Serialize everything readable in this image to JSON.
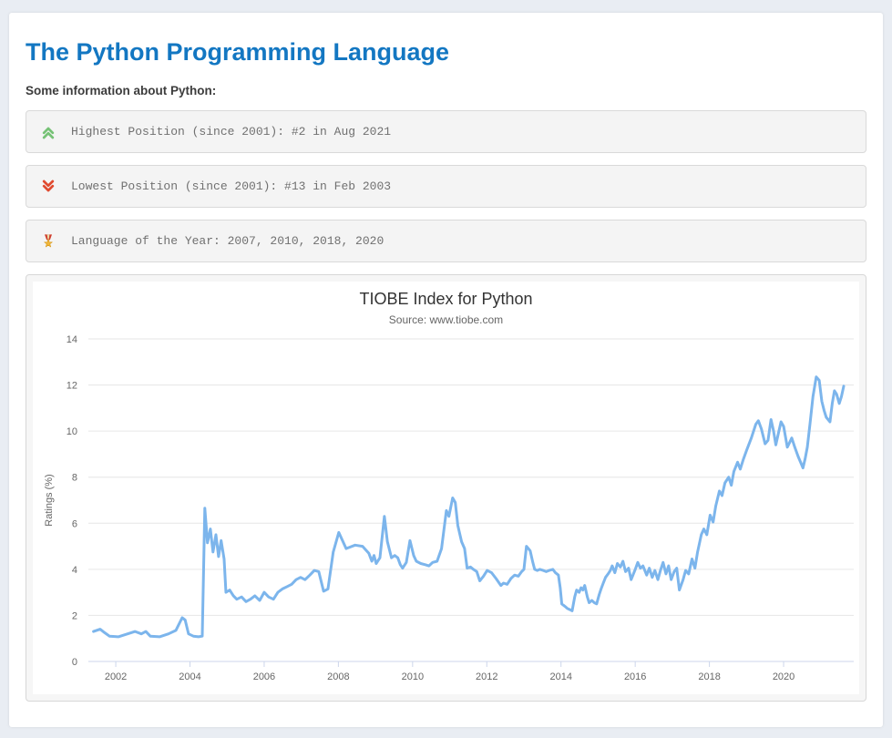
{
  "header": {
    "title": "The Python Programming Language",
    "intro": "Some information about Python:"
  },
  "info_boxes": [
    {
      "icon": "chevrons-up-icon",
      "icon_color": "#76c276",
      "text": "Highest Position (since 2001): #2 in Aug 2021"
    },
    {
      "icon": "chevrons-down-icon",
      "icon_color": "#e04a2f",
      "text": "Lowest Position (since 2001): #13 in Feb 2003"
    },
    {
      "icon": "medal-icon",
      "icon_color": "#f0b63a",
      "text": "Language of the Year: 2007, 2010, 2018, 2020"
    }
  ],
  "chart_data": {
    "type": "line",
    "title": "TIOBE Index for Python",
    "subtitle": "Source: www.tiobe.com",
    "xlabel": "",
    "ylabel": "Ratings (%)",
    "x_ticks": [
      2002,
      2004,
      2006,
      2008,
      2010,
      2012,
      2014,
      2016,
      2018,
      2020
    ],
    "y_ticks": [
      0,
      2,
      4,
      6,
      8,
      10,
      12,
      14
    ],
    "x_range": [
      2001.26,
      2021.89
    ],
    "y_range": [
      0,
      14
    ],
    "grid": true,
    "legend_position": "none",
    "line_color": "#7cb5ec",
    "grid_color": "#e6e6e6",
    "axis_color": "#ccd6eb",
    "tick_label_color": "#666666",
    "series": [
      {
        "name": "Python",
        "points": [
          [
            2001.4,
            1.3
          ],
          [
            2001.58,
            1.4
          ],
          [
            2001.7,
            1.25
          ],
          [
            2001.83,
            1.1
          ],
          [
            2002.07,
            1.07
          ],
          [
            2002.32,
            1.2
          ],
          [
            2002.52,
            1.3
          ],
          [
            2002.69,
            1.2
          ],
          [
            2002.81,
            1.3
          ],
          [
            2002.93,
            1.1
          ],
          [
            2003.18,
            1.07
          ],
          [
            2003.42,
            1.2
          ],
          [
            2003.62,
            1.35
          ],
          [
            2003.79,
            1.9
          ],
          [
            2003.87,
            1.8
          ],
          [
            2003.96,
            1.2
          ],
          [
            2004.09,
            1.1
          ],
          [
            2004.23,
            1.07
          ],
          [
            2004.33,
            1.1
          ],
          [
            2004.4,
            6.65
          ],
          [
            2004.47,
            5.15
          ],
          [
            2004.55,
            5.75
          ],
          [
            2004.62,
            4.75
          ],
          [
            2004.7,
            5.5
          ],
          [
            2004.77,
            4.55
          ],
          [
            2004.84,
            5.25
          ],
          [
            2004.92,
            4.45
          ],
          [
            2004.97,
            3.0
          ],
          [
            2005.07,
            3.1
          ],
          [
            2005.17,
            2.85
          ],
          [
            2005.26,
            2.7
          ],
          [
            2005.39,
            2.8
          ],
          [
            2005.51,
            2.6
          ],
          [
            2005.63,
            2.7
          ],
          [
            2005.75,
            2.85
          ],
          [
            2005.88,
            2.65
          ],
          [
            2006.0,
            3.0
          ],
          [
            2006.12,
            2.8
          ],
          [
            2006.25,
            2.7
          ],
          [
            2006.37,
            3.0
          ],
          [
            2006.49,
            3.15
          ],
          [
            2006.62,
            3.25
          ],
          [
            2006.74,
            3.35
          ],
          [
            2006.86,
            3.55
          ],
          [
            2006.98,
            3.65
          ],
          [
            2007.1,
            3.55
          ],
          [
            2007.23,
            3.75
          ],
          [
            2007.35,
            3.95
          ],
          [
            2007.47,
            3.9
          ],
          [
            2007.6,
            3.05
          ],
          [
            2007.72,
            3.15
          ],
          [
            2007.86,
            4.75
          ],
          [
            2008.01,
            5.6
          ],
          [
            2008.21,
            4.9
          ],
          [
            2008.45,
            5.05
          ],
          [
            2008.65,
            5.0
          ],
          [
            2008.82,
            4.7
          ],
          [
            2008.9,
            4.35
          ],
          [
            2008.96,
            4.6
          ],
          [
            2009.02,
            4.25
          ],
          [
            2009.12,
            4.5
          ],
          [
            2009.24,
            6.3
          ],
          [
            2009.32,
            5.2
          ],
          [
            2009.43,
            4.5
          ],
          [
            2009.52,
            4.6
          ],
          [
            2009.6,
            4.5
          ],
          [
            2009.67,
            4.2
          ],
          [
            2009.73,
            4.05
          ],
          [
            2009.83,
            4.3
          ],
          [
            2009.93,
            5.25
          ],
          [
            2010.03,
            4.6
          ],
          [
            2010.1,
            4.35
          ],
          [
            2010.22,
            4.25
          ],
          [
            2010.34,
            4.2
          ],
          [
            2010.44,
            4.15
          ],
          [
            2010.54,
            4.3
          ],
          [
            2010.66,
            4.35
          ],
          [
            2010.78,
            4.9
          ],
          [
            2010.91,
            6.55
          ],
          [
            2010.98,
            6.3
          ],
          [
            2011.08,
            7.1
          ],
          [
            2011.15,
            6.9
          ],
          [
            2011.22,
            5.9
          ],
          [
            2011.32,
            5.2
          ],
          [
            2011.4,
            4.9
          ],
          [
            2011.47,
            4.05
          ],
          [
            2011.56,
            4.1
          ],
          [
            2011.64,
            4.0
          ],
          [
            2011.73,
            3.9
          ],
          [
            2011.81,
            3.5
          ],
          [
            2011.91,
            3.7
          ],
          [
            2012.01,
            3.95
          ],
          [
            2012.13,
            3.85
          ],
          [
            2012.25,
            3.6
          ],
          [
            2012.38,
            3.3
          ],
          [
            2012.45,
            3.4
          ],
          [
            2012.55,
            3.35
          ],
          [
            2012.65,
            3.6
          ],
          [
            2012.75,
            3.75
          ],
          [
            2012.85,
            3.7
          ],
          [
            2012.94,
            3.9
          ],
          [
            2013.0,
            4.0
          ],
          [
            2013.07,
            5.0
          ],
          [
            2013.12,
            4.9
          ],
          [
            2013.17,
            4.8
          ],
          [
            2013.24,
            4.3
          ],
          [
            2013.29,
            4.0
          ],
          [
            2013.36,
            3.95
          ],
          [
            2013.43,
            4.0
          ],
          [
            2013.52,
            3.95
          ],
          [
            2013.6,
            3.9
          ],
          [
            2013.68,
            3.95
          ],
          [
            2013.78,
            4.0
          ],
          [
            2013.85,
            3.85
          ],
          [
            2013.93,
            3.75
          ],
          [
            2013.98,
            3.2
          ],
          [
            2014.02,
            2.5
          ],
          [
            2014.1,
            2.4
          ],
          [
            2014.17,
            2.3
          ],
          [
            2014.24,
            2.25
          ],
          [
            2014.3,
            2.2
          ],
          [
            2014.37,
            2.8
          ],
          [
            2014.42,
            3.1
          ],
          [
            2014.49,
            3.0
          ],
          [
            2014.54,
            3.2
          ],
          [
            2014.59,
            3.1
          ],
          [
            2014.64,
            3.3
          ],
          [
            2014.71,
            2.8
          ],
          [
            2014.76,
            2.55
          ],
          [
            2014.83,
            2.65
          ],
          [
            2014.9,
            2.55
          ],
          [
            2014.96,
            2.5
          ],
          [
            2015.03,
            2.9
          ],
          [
            2015.08,
            3.15
          ],
          [
            2015.14,
            3.4
          ],
          [
            2015.2,
            3.65
          ],
          [
            2015.27,
            3.8
          ],
          [
            2015.33,
            3.95
          ],
          [
            2015.38,
            4.15
          ],
          [
            2015.45,
            3.85
          ],
          [
            2015.52,
            4.25
          ],
          [
            2015.6,
            4.1
          ],
          [
            2015.67,
            4.35
          ],
          [
            2015.74,
            3.9
          ],
          [
            2015.82,
            4.05
          ],
          [
            2015.89,
            3.55
          ],
          [
            2015.99,
            3.95
          ],
          [
            2016.07,
            4.3
          ],
          [
            2016.14,
            4.05
          ],
          [
            2016.21,
            4.15
          ],
          [
            2016.31,
            3.75
          ],
          [
            2016.38,
            4.05
          ],
          [
            2016.46,
            3.65
          ],
          [
            2016.53,
            3.95
          ],
          [
            2016.61,
            3.55
          ],
          [
            2016.68,
            3.95
          ],
          [
            2016.75,
            4.3
          ],
          [
            2016.83,
            3.8
          ],
          [
            2016.9,
            4.15
          ],
          [
            2016.97,
            3.55
          ],
          [
            2017.05,
            3.9
          ],
          [
            2017.12,
            4.05
          ],
          [
            2017.19,
            3.1
          ],
          [
            2017.29,
            3.55
          ],
          [
            2017.36,
            3.95
          ],
          [
            2017.44,
            3.8
          ],
          [
            2017.53,
            4.45
          ],
          [
            2017.61,
            4.05
          ],
          [
            2017.68,
            4.75
          ],
          [
            2017.78,
            5.5
          ],
          [
            2017.85,
            5.75
          ],
          [
            2017.93,
            5.5
          ],
          [
            2018.02,
            6.35
          ],
          [
            2018.1,
            6.05
          ],
          [
            2018.17,
            6.75
          ],
          [
            2018.27,
            7.4
          ],
          [
            2018.34,
            7.2
          ],
          [
            2018.42,
            7.75
          ],
          [
            2018.52,
            8.0
          ],
          [
            2018.59,
            7.65
          ],
          [
            2018.66,
            8.25
          ],
          [
            2018.76,
            8.65
          ],
          [
            2018.83,
            8.35
          ],
          [
            2018.91,
            8.75
          ],
          [
            2019.01,
            9.2
          ],
          [
            2019.13,
            9.7
          ],
          [
            2019.25,
            10.3
          ],
          [
            2019.32,
            10.45
          ],
          [
            2019.4,
            10.1
          ],
          [
            2019.5,
            9.45
          ],
          [
            2019.58,
            9.6
          ],
          [
            2019.66,
            10.5
          ],
          [
            2019.73,
            10.0
          ],
          [
            2019.79,
            9.4
          ],
          [
            2019.86,
            9.9
          ],
          [
            2019.93,
            10.4
          ],
          [
            2020.0,
            10.2
          ],
          [
            2020.1,
            9.3
          ],
          [
            2020.16,
            9.5
          ],
          [
            2020.22,
            9.7
          ],
          [
            2020.3,
            9.3
          ],
          [
            2020.39,
            8.9
          ],
          [
            2020.47,
            8.6
          ],
          [
            2020.52,
            8.4
          ],
          [
            2020.58,
            8.8
          ],
          [
            2020.64,
            9.3
          ],
          [
            2020.71,
            10.3
          ],
          [
            2020.79,
            11.5
          ],
          [
            2020.88,
            12.35
          ],
          [
            2020.96,
            12.2
          ],
          [
            2021.03,
            11.3
          ],
          [
            2021.09,
            10.9
          ],
          [
            2021.15,
            10.6
          ],
          [
            2021.25,
            10.4
          ],
          [
            2021.31,
            11.2
          ],
          [
            2021.37,
            11.75
          ],
          [
            2021.43,
            11.6
          ],
          [
            2021.5,
            11.2
          ],
          [
            2021.56,
            11.5
          ],
          [
            2021.62,
            11.95
          ]
        ]
      }
    ]
  }
}
